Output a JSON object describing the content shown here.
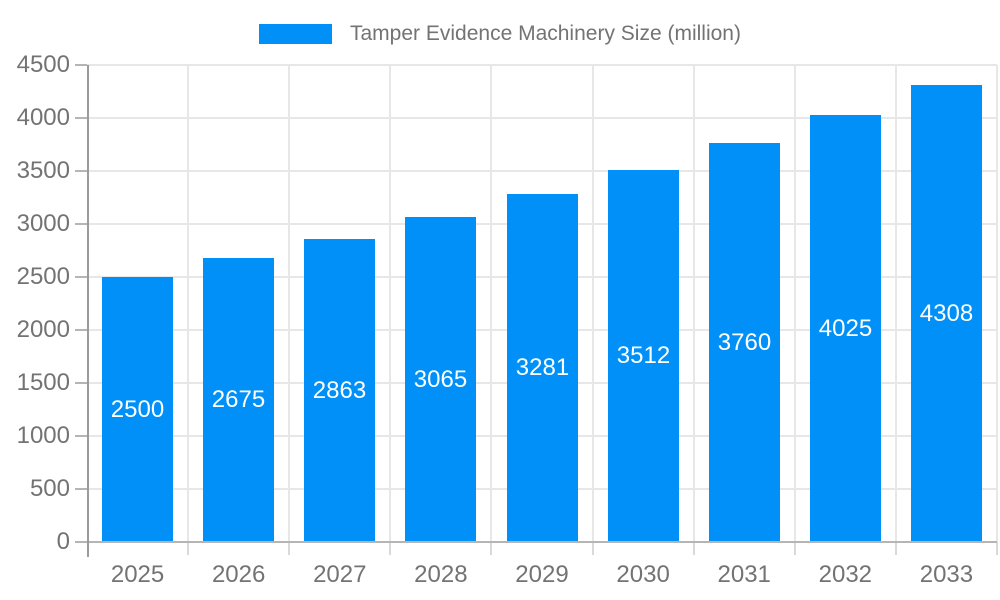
{
  "chart_data": {
    "type": "bar",
    "title": "",
    "legend_label": "Tamper Evidence Machinery Size (million)",
    "legend_position": "top",
    "categories": [
      "2025",
      "2026",
      "2027",
      "2028",
      "2029",
      "2030",
      "2031",
      "2032",
      "2033"
    ],
    "values": [
      2500,
      2675,
      2863,
      3065,
      3281,
      3512,
      3760,
      4025,
      4308
    ],
    "xlabel": "",
    "ylabel": "",
    "ylim": [
      0,
      4500
    ],
    "yticks": [
      0,
      500,
      1000,
      1500,
      2000,
      2500,
      3000,
      3500,
      4000,
      4500
    ],
    "grid": true,
    "colors": {
      "bar": "#0090f7",
      "value_label": "#ffffff",
      "axis_text": "#737373",
      "grid": "#e7e7e7",
      "axis_line": "#9b9b9b",
      "baseline": "#b5b5b5",
      "x_tick": "#d9d9d9",
      "y_tick": "#b5b5b5"
    }
  }
}
